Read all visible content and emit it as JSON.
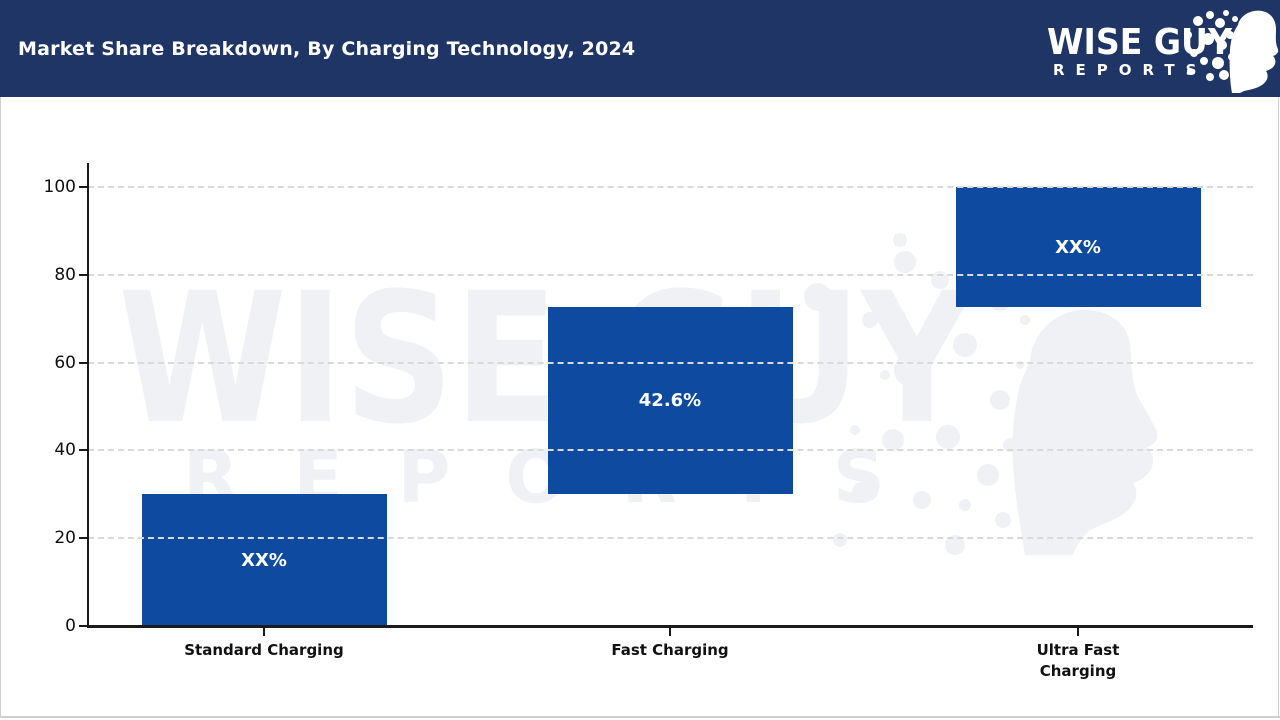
{
  "header": {
    "title": "Market Share Breakdown, By Charging Technology, 2024",
    "logo": {
      "name": "WISE GUY",
      "subtitle": "REPORTS"
    }
  },
  "watermark": {
    "name": "WISE GUY",
    "subtitle": "REPORTS"
  },
  "chart_data": {
    "type": "bar",
    "subtype": "floating-segment-bars",
    "title": "Market Share Breakdown, By Charging Technology, 2024",
    "categories": [
      "Standard Charging",
      "Fast Charging",
      "Ultra Fast\nCharging"
    ],
    "bars": [
      {
        "category": "Standard Charging",
        "start": 0,
        "end": 30,
        "label": "XX%"
      },
      {
        "category": "Fast Charging",
        "start": 30,
        "end": 72.6,
        "label": "42.6%"
      },
      {
        "category": "Ultra Fast Charging",
        "start": 72.6,
        "end": 100,
        "label": "XX%"
      }
    ],
    "xlabel": "",
    "ylabel": "",
    "ylim": [
      0,
      100
    ],
    "yticks": [
      0,
      20,
      40,
      60,
      80,
      100
    ],
    "grid": "horizontal dashed, drawn over bars",
    "legend": "none"
  },
  "colors": {
    "header_bg": "#1f3565",
    "bar": "#0d4aa0",
    "grid": "#d9d9d9",
    "axis": "#1a1a1a",
    "watermark": "#eff1f4",
    "bar_label": "#ffffff",
    "tick_text": "#111111"
  }
}
